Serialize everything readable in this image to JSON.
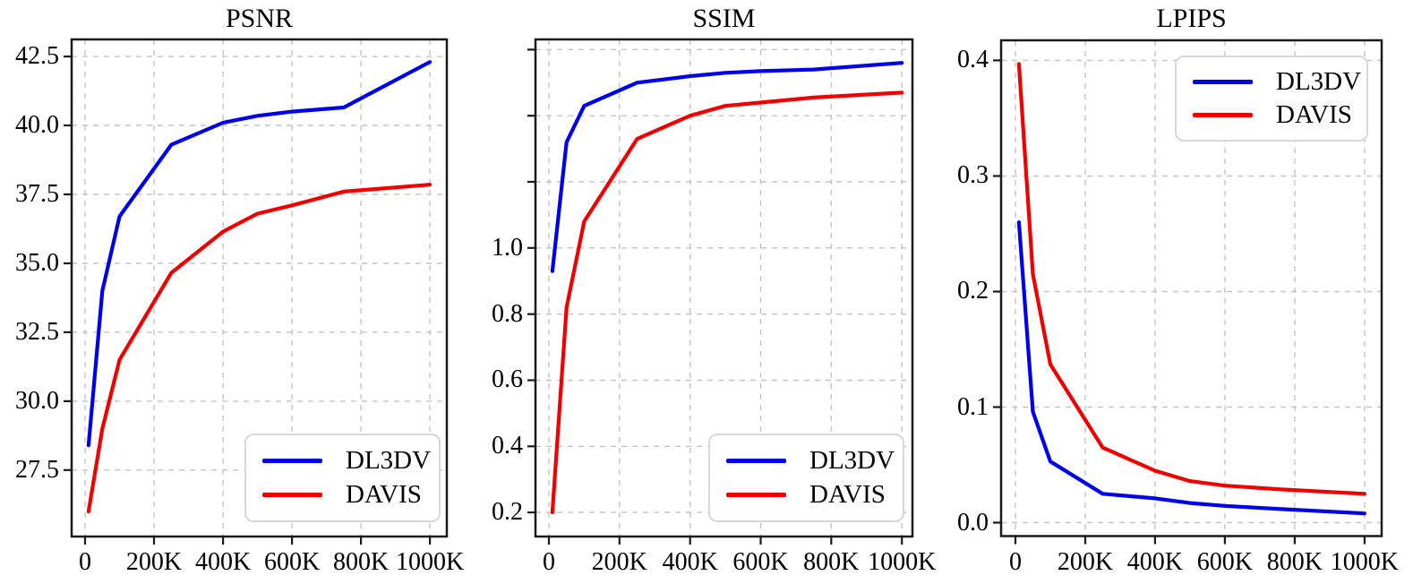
{
  "figure": {
    "background_color": "#ffffff",
    "text_color": "#000000",
    "grid_color": "#c4c4c4",
    "grid_style": "dashed",
    "spine_color": "#1a1a1a",
    "series_colors": {
      "DL3DV": "#0000f0",
      "DAVIS": "#f20000"
    }
  },
  "chart_data": [
    {
      "type": "line",
      "title": "PSNR",
      "x_thousands": [
        10,
        50,
        100,
        250,
        400,
        500,
        600,
        750,
        1000
      ],
      "series": [
        {
          "name": "DL3DV",
          "color": "#0000f0",
          "values": [
            28.4,
            34.0,
            36.7,
            39.3,
            40.1,
            40.35,
            40.5,
            40.65,
            42.3
          ]
        },
        {
          "name": "DAVIS",
          "color": "#f20000",
          "values": [
            26.0,
            29.0,
            31.5,
            34.65,
            36.15,
            36.8,
            37.1,
            37.6,
            37.85
          ]
        }
      ],
      "xticks": {
        "values": [
          0,
          200,
          400,
          600,
          800,
          1000
        ],
        "labels": [
          "0",
          "200K",
          "400K",
          "600K",
          "800K",
          "1000K"
        ]
      },
      "yticks": {
        "values": [
          27.5,
          30.0,
          32.5,
          35.0,
          37.5,
          40.0,
          42.5
        ],
        "labels": [
          "27.5",
          "30.0",
          "32.5",
          "35.0",
          "37.5",
          "40.0",
          "42.5"
        ]
      },
      "xlim_thousands": [
        -39,
        1049
      ],
      "ylim": [
        25.09,
        43.12
      ],
      "grid": true,
      "legend": {
        "position": "lower right",
        "entries": [
          "DL3DV",
          "DAVIS"
        ]
      }
    },
    {
      "type": "line",
      "title": "SSIM",
      "x_thousands": [
        10,
        50,
        100,
        250,
        400,
        500,
        600,
        750,
        1000
      ],
      "series": [
        {
          "name": "DL3DV",
          "color": "#0000f0",
          "values": [
            0.93,
            1.32,
            1.43,
            1.5,
            1.52,
            1.53,
            1.535,
            1.54,
            1.56
          ]
        },
        {
          "name": "DAVIS",
          "color": "#f20000",
          "values": [
            0.2,
            0.82,
            1.08,
            1.33,
            1.4,
            1.43,
            1.44,
            1.455,
            1.47
          ]
        }
      ],
      "xticks": {
        "values": [
          0,
          200,
          400,
          600,
          800,
          1000
        ],
        "labels": [
          "0",
          "200K",
          "400K",
          "600K",
          "800K",
          "1000K"
        ]
      },
      "yticks": {
        "values": [
          0.2,
          0.4,
          0.6,
          0.8,
          1.0,
          1.2,
          1.4,
          1.6
        ],
        "labels": [
          "0.2",
          "0.4",
          "0.6",
          "0.8",
          "1.0",
          "",
          "",
          ""
        ]
      },
      "ytick_labels_hidden_above": 1.0,
      "xlim_thousands": [
        -38,
        1030
      ],
      "ylim": [
        0.127,
        1.631
      ],
      "grid": true,
      "legend": {
        "position": "lower right",
        "entries": [
          "DL3DV",
          "DAVIS"
        ]
      }
    },
    {
      "type": "line",
      "title": "LPIPS",
      "x_thousands": [
        10,
        50,
        100,
        250,
        400,
        500,
        600,
        750,
        1000
      ],
      "series": [
        {
          "name": "DL3DV",
          "color": "#0000f0",
          "values": [
            0.26,
            0.096,
            0.053,
            0.025,
            0.021,
            0.017,
            0.0145,
            0.012,
            0.008
          ]
        },
        {
          "name": "DAVIS",
          "color": "#f20000",
          "values": [
            0.397,
            0.215,
            0.137,
            0.065,
            0.045,
            0.036,
            0.032,
            0.029,
            0.025
          ]
        }
      ],
      "xticks": {
        "values": [
          0,
          200,
          400,
          600,
          800,
          1000
        ],
        "labels": [
          "0",
          "200K",
          "400K",
          "600K",
          "800K",
          "1000K"
        ]
      },
      "yticks": {
        "values": [
          0.0,
          0.1,
          0.2,
          0.3,
          0.4
        ],
        "labels": [
          "0.0",
          "0.1",
          "0.2",
          "0.3",
          "0.4"
        ]
      },
      "xlim_thousands": [
        -41,
        1049
      ],
      "ylim": [
        -0.0116,
        0.4174
      ],
      "grid": true,
      "legend": {
        "position": "upper right",
        "entries": [
          "DL3DV",
          "DAVIS"
        ]
      }
    }
  ]
}
